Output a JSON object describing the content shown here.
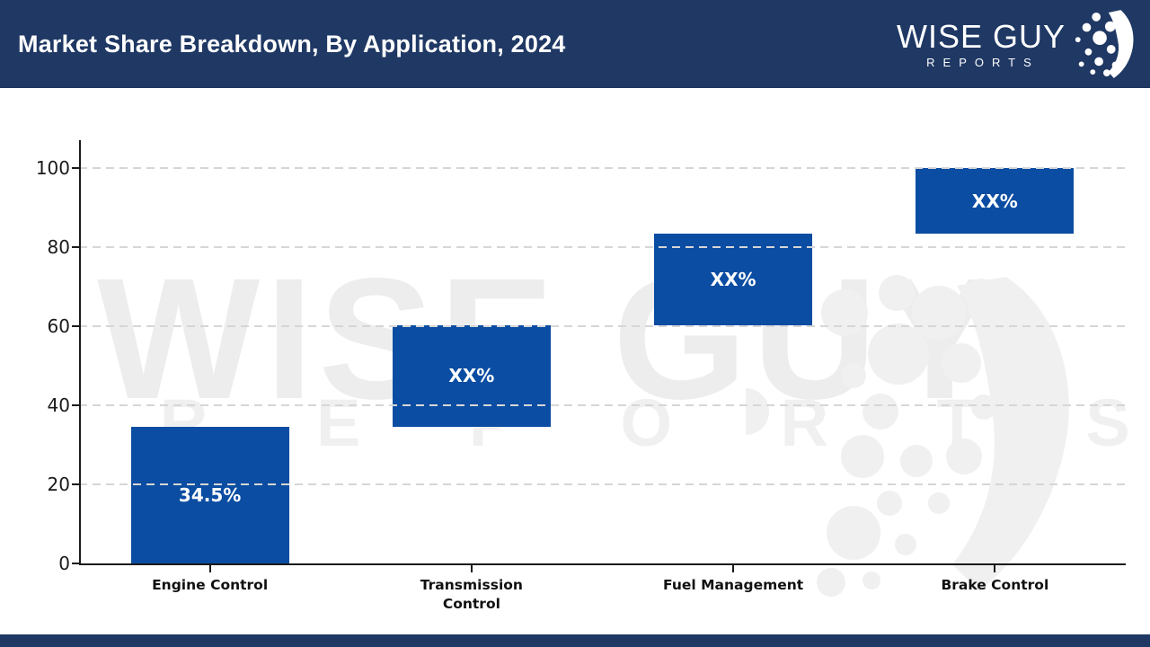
{
  "colors": {
    "banner": "#1f3864",
    "bar": "#0b4da2",
    "bar_label": "#ffffff",
    "gridline": "#d6d6d6",
    "axis": "#1a1a1a",
    "watermark": "#ededed"
  },
  "header": {
    "title": "Market Share Breakdown, By Application, 2024",
    "logo_line1": "WISE GUY",
    "logo_line2": "REPORTS"
  },
  "watermark": {
    "line1": "WISE GUY",
    "line2": "R E P O R T S"
  },
  "chart_data": {
    "type": "bar",
    "subtype": "waterfall",
    "title": "Market Share Breakdown, By Application, 2024",
    "categories": [
      "Engine Control",
      "Transmission Control",
      "Fuel Management",
      "Brake Control"
    ],
    "segments": [
      {
        "label": "Engine Control",
        "start": 0,
        "end": 34.5,
        "value": 34.5,
        "display": "34.5%"
      },
      {
        "label": "Transmission Control",
        "start": 34.5,
        "end": 60.3,
        "value": 25.8,
        "display": "XX%"
      },
      {
        "label": "Fuel Management",
        "start": 60.3,
        "end": 83.4,
        "value": 23.1,
        "display": "XX%"
      },
      {
        "label": "Brake Control",
        "start": 83.4,
        "end": 100,
        "value": 16.6,
        "display": "XX%"
      }
    ],
    "y_ticks": [
      0,
      20,
      40,
      60,
      80,
      100
    ],
    "ylim": [
      0,
      107
    ],
    "xlabel": "",
    "ylabel": "",
    "grid": "horizontal-dashed",
    "legend": "none"
  },
  "footer": {}
}
